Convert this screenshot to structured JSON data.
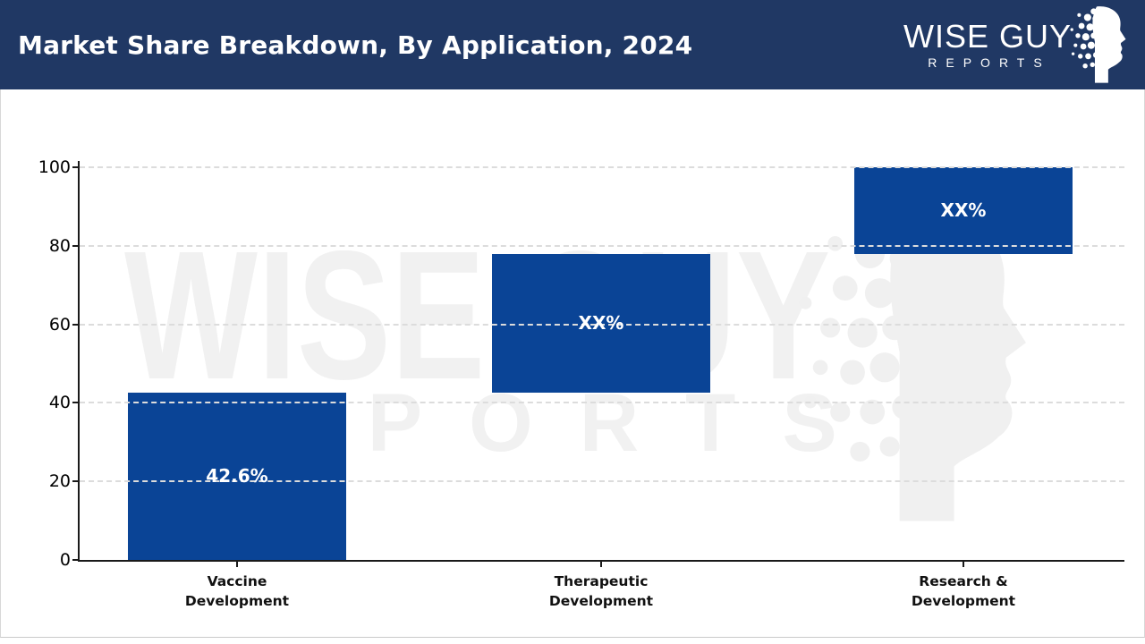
{
  "header": {
    "title": "Market Share Breakdown, By Application, 2024",
    "logo": {
      "wordmark": "WISE GUY",
      "subtext": "REPORTS"
    }
  },
  "watermark": {
    "wordmark": "WISE GUY",
    "subtext": "REPORTS"
  },
  "colors": {
    "header_bg": "#203864",
    "bar": "#0a4496",
    "bar_label": "#ffffff",
    "gridline": "#dcdcdc",
    "axis": "#1a1a1a",
    "watermark": "#f1f1f1"
  },
  "chart_data": {
    "type": "bar",
    "subtype": "waterfall",
    "title": "Market Share Breakdown, By Application, 2024",
    "categories": [
      "Vaccine Development",
      "Therapeutic Development",
      "Research & Development"
    ],
    "category_lines": [
      [
        "Vaccine",
        "Development"
      ],
      [
        "Therapeutic",
        "Development"
      ],
      [
        "Research &",
        "Development"
      ]
    ],
    "segments": [
      {
        "category": "Vaccine Development",
        "start": 0,
        "end": 42.6,
        "label": "42.6%"
      },
      {
        "category": "Therapeutic Development",
        "start": 42.6,
        "end": 78,
        "label": "XX%"
      },
      {
        "category": "Research & Development",
        "start": 78,
        "end": 100,
        "label": "XX%"
      }
    ],
    "ylim": [
      0,
      100
    ],
    "yticks": [
      0,
      20,
      40,
      60,
      80,
      100
    ],
    "grid": "horizontal dashed, drawn above bars",
    "legend": "none",
    "bar_color": "#0a4496"
  }
}
